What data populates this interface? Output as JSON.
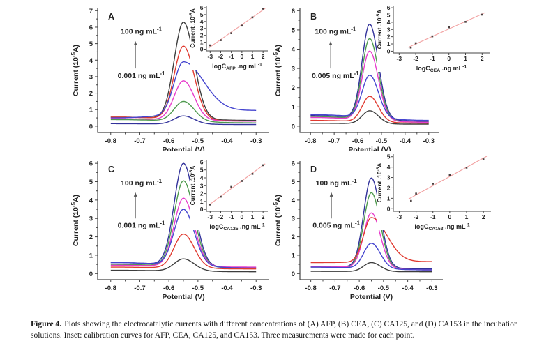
{
  "figure": {
    "caption_label": "Figure 4.",
    "caption_text": "Plots showing the electrocatalytic currents with different concentrations of (A) AFP, (B) CEA, (C) CA125, and (D) CA153 in the incubation solutions. Inset: calibration curves for AFP, CEA, CA125, and CA153. Three measurements were made for each point."
  },
  "chart_data": [
    {
      "panel": "A",
      "type": "line",
      "analyte": "AFP",
      "main": {
        "xlabel_parts": [
          [
            "Potential (V)",
            ""
          ]
        ],
        "ylabel_parts": [
          [
            "Current (10",
            ""
          ],
          [
            "-5",
            "sup"
          ],
          [
            "A)",
            ""
          ]
        ],
        "xlim": [
          -0.8,
          -0.3
        ],
        "ylim": [
          0,
          7
        ],
        "xticks": [
          -0.8,
          -0.7,
          -0.6,
          -0.5,
          -0.4,
          -0.3
        ],
        "xtick_labels": [
          "-0.8",
          "-0.7",
          "-0.6",
          "-0.5",
          "-0.4",
          "-0.3"
        ],
        "yticks": [
          0,
          1,
          2,
          3,
          4,
          5,
          6,
          7
        ],
        "peak_potential": -0.55,
        "annotation_top_parts": [
          [
            "100 ng mL",
            ""
          ],
          [
            "-1",
            "sup"
          ]
        ],
        "annotation_bottom_parts": [
          [
            "0.001 ng mL",
            ""
          ],
          [
            "-1",
            "sup"
          ]
        ],
        "curves": [
          {
            "color": "#3d3d3d",
            "peak": 6.3,
            "base_left": 0.55,
            "base_right": 0.35
          },
          {
            "color": "#e03a30",
            "peak": 4.85,
            "base_left": 0.55,
            "base_right": 0.3
          },
          {
            "color": "#4545cf",
            "peak": 3.9,
            "base_left": 0.5,
            "base_right": 0.95,
            "sigma_right": 0.1
          },
          {
            "color": "#e83ccc",
            "peak": 2.75,
            "base_left": 0.45,
            "base_right": 0.3
          },
          {
            "color": "#4e9a4e",
            "peak": 1.5,
            "base_left": 0.4,
            "base_right": 0.2
          },
          {
            "color": "#32329b",
            "peak": 0.62,
            "base_left": 0.15,
            "base_right": 0.1
          }
        ]
      },
      "inset": {
        "ylabel_parts": [
          [
            "Current .10",
            ""
          ],
          [
            "-5",
            "sup"
          ],
          [
            "A",
            ""
          ]
        ],
        "xlabel_parts": [
          [
            "logC",
            ""
          ],
          [
            "AFP",
            "sub"
          ],
          [
            " .ng mL",
            ""
          ],
          [
            "-1",
            "sup"
          ]
        ],
        "xlim": [
          -3,
          2
        ],
        "ylim": [
          0,
          6
        ],
        "xticks": [
          -3,
          -2,
          -1,
          0,
          1,
          2
        ],
        "xtick_labels": [
          "-3",
          "-2",
          "-1",
          "0",
          "1",
          "2"
        ],
        "yticks": [
          0,
          1,
          2,
          3,
          4,
          5,
          6
        ],
        "points": [
          [
            -3,
            0.55
          ],
          [
            -2,
            1.3
          ],
          [
            -1,
            2.3
          ],
          [
            0,
            3.4
          ],
          [
            1,
            4.6
          ],
          [
            2,
            5.85
          ]
        ],
        "line_color": "#f2a0a0",
        "point_color": "#4a4040"
      }
    },
    {
      "panel": "B",
      "type": "line",
      "analyte": "CEA",
      "main": {
        "xlabel_parts": [
          [
            "Potential (V)",
            ""
          ]
        ],
        "ylabel_parts": [
          [
            "Current (10",
            ""
          ],
          [
            "-5",
            "sup"
          ],
          [
            "A)",
            ""
          ]
        ],
        "xlim": [
          -0.8,
          -0.3
        ],
        "ylim": [
          0,
          6
        ],
        "xticks": [
          -0.8,
          -0.7,
          -0.6,
          -0.5,
          -0.4,
          -0.3
        ],
        "xtick_labels": [
          "-0.8",
          "-0.7",
          "-0.6",
          "-0.5",
          "-0.4",
          "-0.3"
        ],
        "yticks": [
          0,
          1,
          2,
          3,
          4,
          5,
          6
        ],
        "peak_potential": -0.55,
        "annotation_top_parts": [
          [
            "100 ng mL",
            ""
          ],
          [
            "-1",
            "sup"
          ]
        ],
        "annotation_bottom_parts": [
          [
            "0.005 ng mL",
            ""
          ],
          [
            "-1",
            "sup"
          ]
        ],
        "curves": [
          {
            "color": "#32329b",
            "peak": 5.3,
            "base_left": 0.55,
            "base_right": 0.25
          },
          {
            "color": "#4e9a4e",
            "peak": 4.55,
            "base_left": 0.5,
            "base_right": 0.2
          },
          {
            "color": "#e83ccc",
            "peak": 3.9,
            "base_left": 0.45,
            "base_right": 0.2
          },
          {
            "color": "#4545cf",
            "peak": 2.65,
            "base_left": 0.6,
            "base_right": 0.3
          },
          {
            "color": "#e03a30",
            "peak": 1.55,
            "base_left": 0.3,
            "base_right": 0.15
          },
          {
            "color": "#3d3d3d",
            "peak": 0.8,
            "base_left": 0.15,
            "base_right": 0.1
          }
        ]
      },
      "inset": {
        "ylabel_parts": [
          [
            "Current .10",
            ""
          ],
          [
            "-5",
            "sup"
          ],
          [
            "A",
            ""
          ]
        ],
        "xlabel_parts": [
          [
            "logC",
            ""
          ],
          [
            "CEA",
            "sub"
          ],
          [
            " .ng mL",
            ""
          ],
          [
            "-1",
            "sup"
          ]
        ],
        "xlim": [
          -3,
          2
        ],
        "ylim": [
          0,
          6
        ],
        "xticks": [
          -3,
          -2,
          -1,
          0,
          1,
          2
        ],
        "xtick_labels": [
          "-3",
          "-2",
          "-1",
          "0",
          "1",
          "2"
        ],
        "yticks": [
          0,
          1,
          2,
          3,
          4,
          5,
          6
        ],
        "points": [
          [
            -2.3,
            0.5
          ],
          [
            -2,
            1.1
          ],
          [
            -1,
            2.05
          ],
          [
            0,
            3.3
          ],
          [
            1,
            4.05
          ],
          [
            2,
            5.05
          ]
        ],
        "line_color": "#f2a0a0",
        "point_color": "#4a4040"
      }
    },
    {
      "panel": "C",
      "type": "line",
      "analyte": "CA125",
      "main": {
        "xlabel_parts": [
          [
            "Potential (V)",
            ""
          ]
        ],
        "ylabel_parts": [
          [
            "Current (10",
            ""
          ],
          [
            "-5",
            "sup"
          ],
          [
            "A)",
            ""
          ]
        ],
        "xlim": [
          -0.8,
          -0.3
        ],
        "ylim": [
          0,
          6
        ],
        "xticks": [
          -0.8,
          -0.7,
          -0.6,
          -0.5,
          -0.4,
          -0.3
        ],
        "xtick_labels": [
          "-0.8",
          "-0.7",
          "-0.6",
          "-0.5",
          "-0.4",
          "-0.3"
        ],
        "yticks": [
          0,
          1,
          2,
          3,
          4,
          5,
          6
        ],
        "peak_potential": -0.55,
        "annotation_top_parts": [
          [
            "100 ng mL",
            ""
          ],
          [
            "-1",
            "sup"
          ]
        ],
        "annotation_bottom_parts": [
          [
            "0.001 ng mL",
            ""
          ],
          [
            "-1",
            "sup"
          ]
        ],
        "curves": [
          {
            "color": "#32329b",
            "peak": 6.0,
            "base_left": 0.6,
            "base_right": 0.3
          },
          {
            "color": "#4e9a4e",
            "peak": 5.05,
            "base_left": 0.5,
            "base_right": 0.3
          },
          {
            "color": "#e83ccc",
            "peak": 4.1,
            "base_left": 0.45,
            "base_right": 0.35
          },
          {
            "color": "#4545cf",
            "peak": 3.5,
            "base_left": 0.6,
            "base_right": 0.3
          },
          {
            "color": "#e03a30",
            "peak": 2.15,
            "base_left": 0.35,
            "base_right": 0.25
          },
          {
            "color": "#3d3d3d",
            "peak": 0.8,
            "base_left": 0.18,
            "base_right": 0.1
          }
        ]
      },
      "inset": {
        "ylabel_parts": [
          [
            "Current .10",
            ""
          ],
          [
            "-5",
            "sup"
          ],
          [
            "A",
            ""
          ]
        ],
        "xlabel_parts": [
          [
            "logC",
            ""
          ],
          [
            "CA125",
            "sub"
          ],
          [
            " .ng mL",
            ""
          ],
          [
            "-1",
            "sup"
          ]
        ],
        "xlim": [
          -3,
          2
        ],
        "ylim": [
          0,
          6
        ],
        "xticks": [
          -3,
          -2,
          -1,
          0,
          1,
          2
        ],
        "xtick_labels": [
          "-3",
          "-2",
          "-1",
          "0",
          "1",
          "2"
        ],
        "yticks": [
          0,
          1,
          2,
          3,
          4,
          5,
          6
        ],
        "points": [
          [
            -3,
            0.6
          ],
          [
            -2,
            1.6
          ],
          [
            -1,
            2.85
          ],
          [
            0,
            3.6
          ],
          [
            1,
            4.5
          ],
          [
            2,
            5.6
          ]
        ],
        "line_color": "#f2a0a0",
        "point_color": "#4a4040"
      }
    },
    {
      "panel": "D",
      "type": "line",
      "analyte": "CA153",
      "main": {
        "xlabel_parts": [
          [
            "Potential (V)",
            ""
          ]
        ],
        "ylabel_parts": [
          [
            "Current (10",
            ""
          ],
          [
            "-5",
            "sup"
          ],
          [
            "A)",
            ""
          ]
        ],
        "xlim": [
          -0.8,
          -0.3
        ],
        "ylim": [
          0,
          6
        ],
        "xticks": [
          -0.8,
          -0.7,
          -0.6,
          -0.5,
          -0.4,
          -0.3
        ],
        "xtick_labels": [
          "-0.8",
          "-0.7",
          "-0.6",
          "-0.5",
          "-0.4",
          "-0.3"
        ],
        "yticks": [
          0,
          1,
          2,
          3,
          4,
          5,
          6
        ],
        "peak_potential": -0.55,
        "annotation_top_parts": [
          [
            "100 ng mL",
            ""
          ],
          [
            "-1",
            "sup"
          ]
        ],
        "annotation_bottom_parts": [
          [
            "0.005 ng mL",
            ""
          ],
          [
            "-1",
            "sup"
          ]
        ],
        "curves": [
          {
            "color": "#32329b",
            "peak": 5.2,
            "base_left": 0.4,
            "base_right": 0.25
          },
          {
            "color": "#4e9a4e",
            "peak": 4.4,
            "base_left": 0.35,
            "base_right": 0.2
          },
          {
            "color": "#e83ccc",
            "peak": 3.3,
            "base_left": 0.4,
            "base_right": 0.2
          },
          {
            "color": "#e03a30",
            "peak": 3.05,
            "base_left": 0.6,
            "base_right": 0.65,
            "sigma_right": 0.09
          },
          {
            "color": "#4545cf",
            "peak": 1.65,
            "base_left": 0.35,
            "base_right": 0.2
          },
          {
            "color": "#3d3d3d",
            "peak": 0.6,
            "base_left": 0.12,
            "base_right": 0.1
          }
        ]
      },
      "inset": {
        "ylabel_parts": [
          [
            "Current .10",
            ""
          ],
          [
            "-5",
            "sup"
          ],
          [
            "A",
            ""
          ]
        ],
        "xlabel_parts": [
          [
            "logC",
            ""
          ],
          [
            "CA153",
            "sub"
          ],
          [
            " .ng mL",
            ""
          ],
          [
            "-1",
            "sup"
          ]
        ],
        "xlim": [
          -3,
          2
        ],
        "ylim": [
          0,
          5
        ],
        "xticks": [
          -3,
          -2,
          -1,
          0,
          1,
          2
        ],
        "xtick_labels": [
          "-3",
          "-2",
          "-1",
          "0",
          "1",
          "2"
        ],
        "yticks": [
          0,
          1,
          2,
          3,
          4,
          5
        ],
        "points": [
          [
            -2.3,
            0.75
          ],
          [
            -2,
            1.45
          ],
          [
            -1,
            2.4
          ],
          [
            0,
            3.25
          ],
          [
            1,
            3.95
          ],
          [
            2,
            4.75
          ]
        ],
        "line_color": "#f2a0a0",
        "point_color": "#4a4040"
      }
    }
  ]
}
